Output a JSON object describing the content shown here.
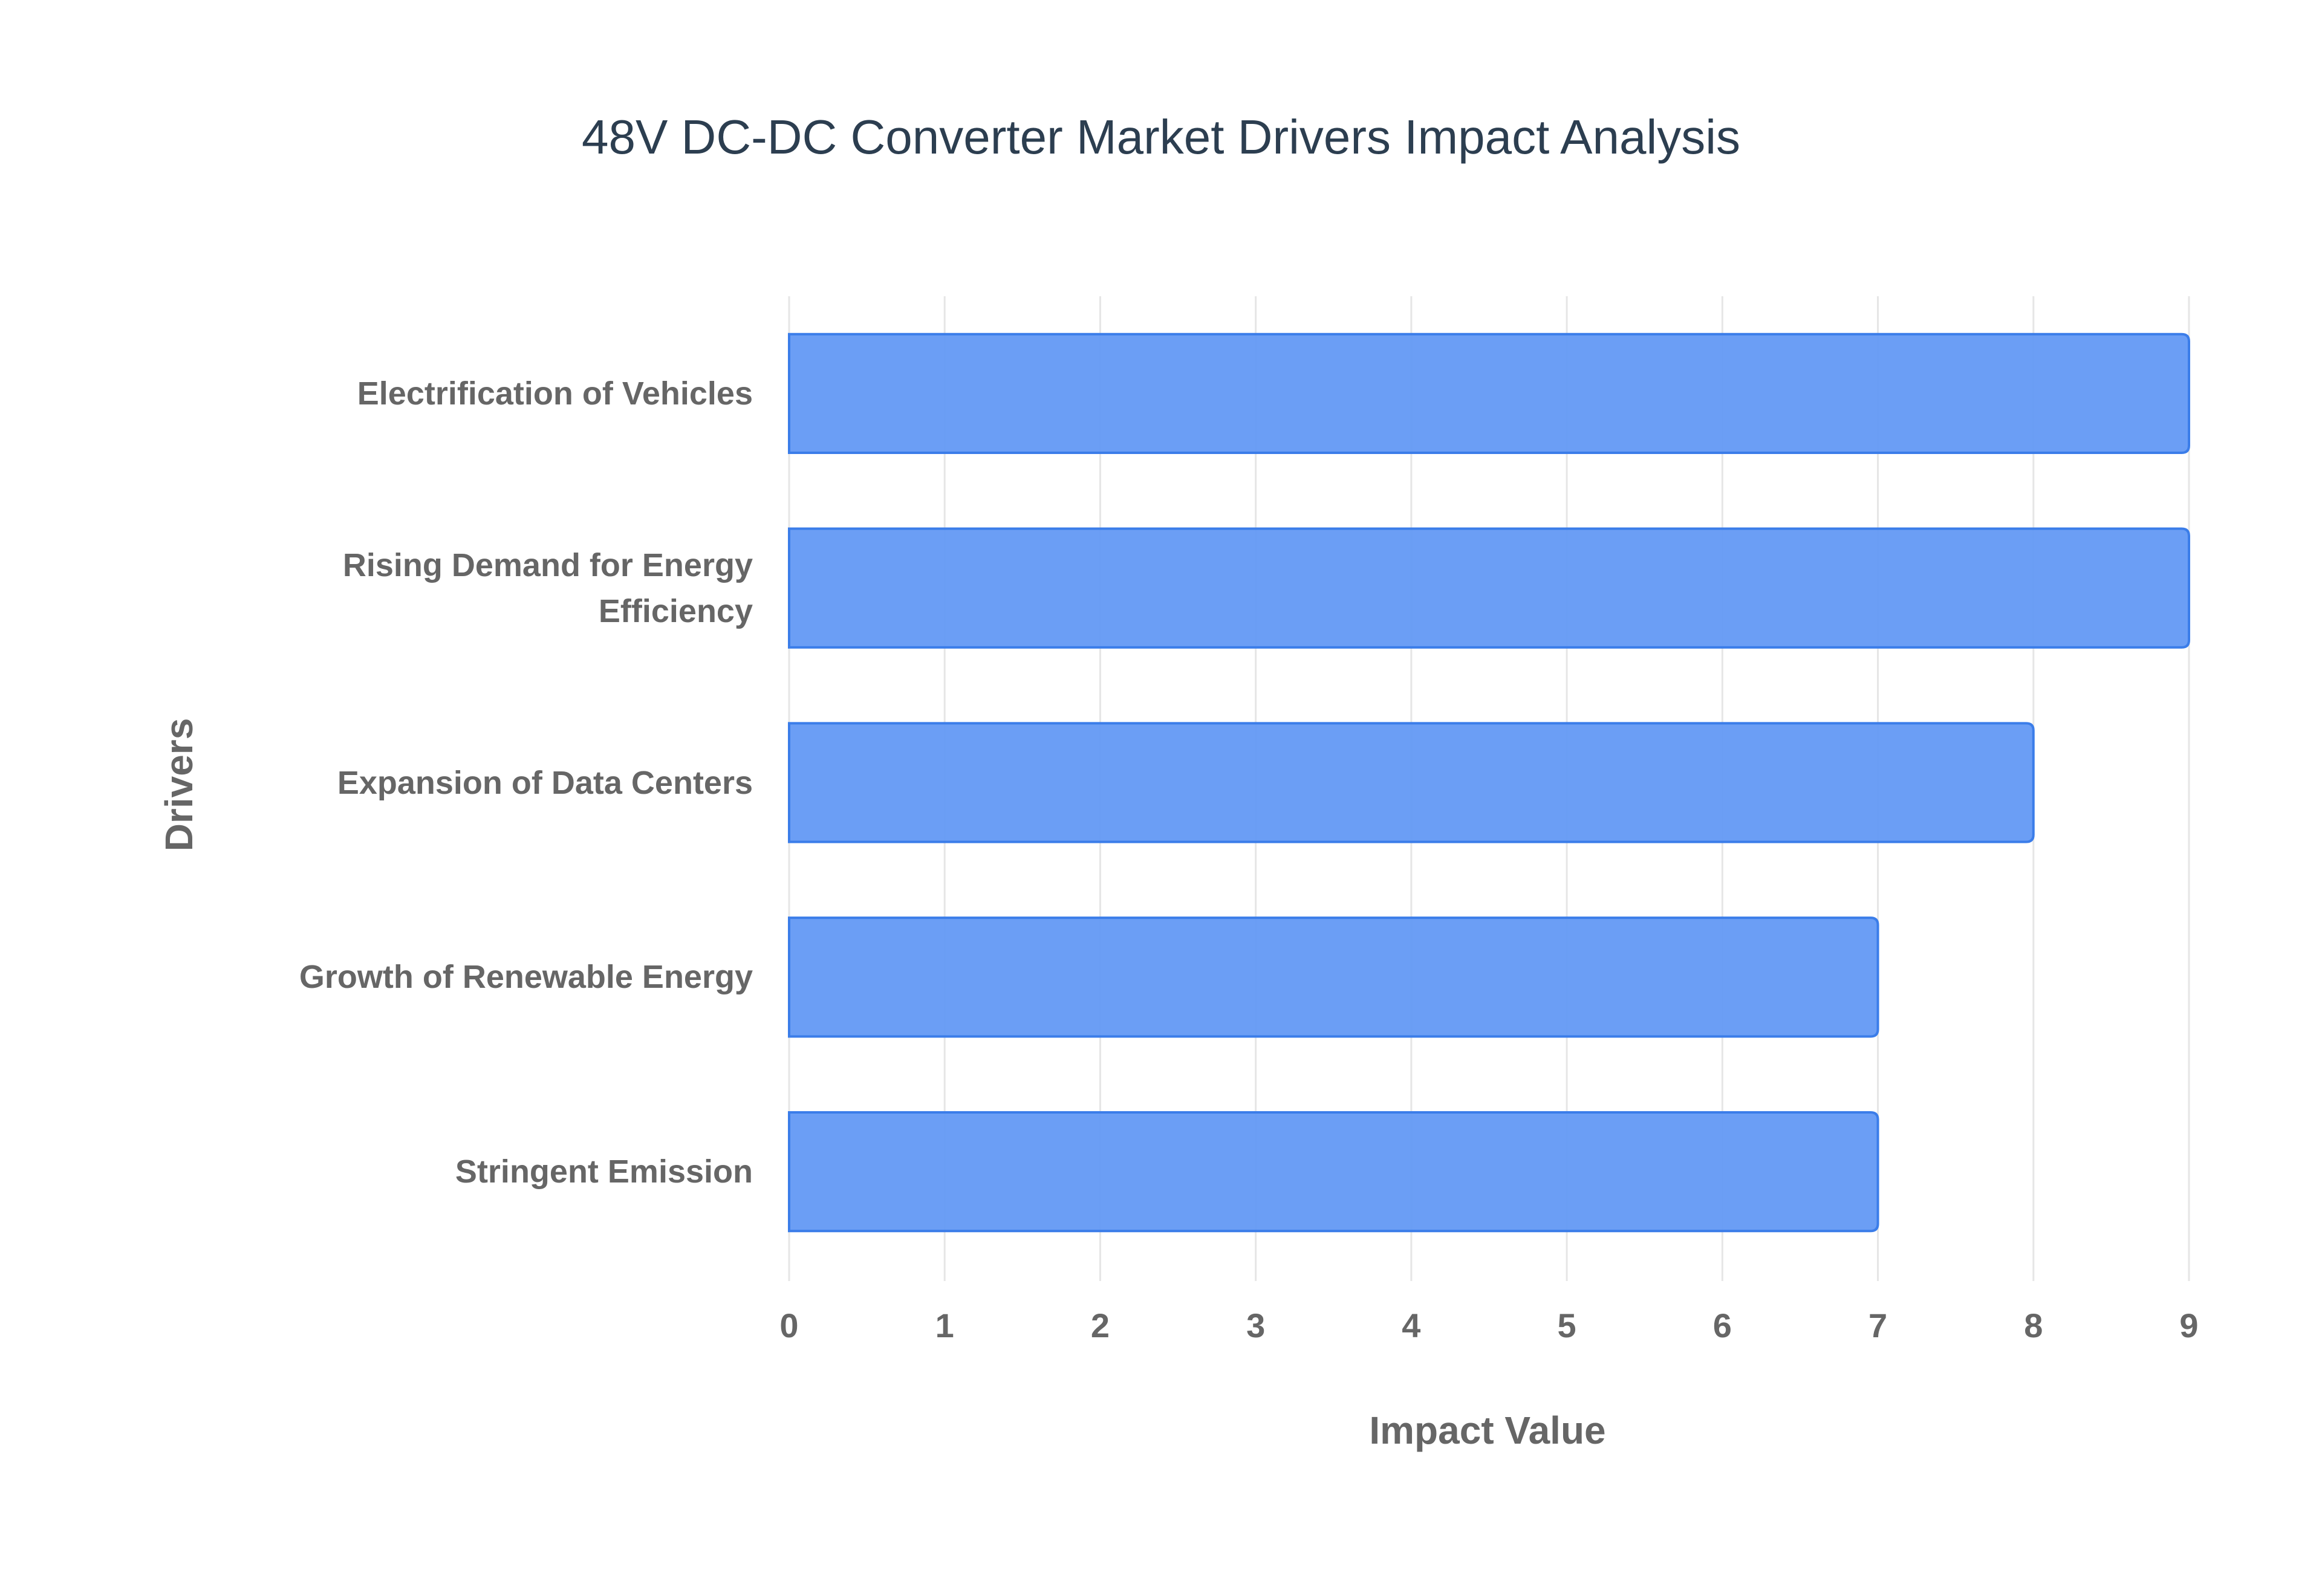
{
  "chart_data": {
    "type": "bar",
    "orientation": "horizontal",
    "title": "48V DC-DC Converter Market Drivers Impact Analysis",
    "x_label": "Impact Value",
    "y_label": "Drivers",
    "categories": [
      "Electrification of Vehicles",
      "Rising Demand for Energy Efficiency",
      "Expansion of Data Centers",
      "Growth of Renewable Energy",
      "Stringent Emission"
    ],
    "values": [
      9,
      9,
      8,
      7,
      7
    ],
    "color": "#6399f4",
    "border_color": "#3b7de9",
    "xlim": [
      0,
      9
    ],
    "xticks": [
      0,
      1,
      2,
      3,
      4,
      5,
      6,
      7,
      8,
      9
    ],
    "grid": true
  }
}
